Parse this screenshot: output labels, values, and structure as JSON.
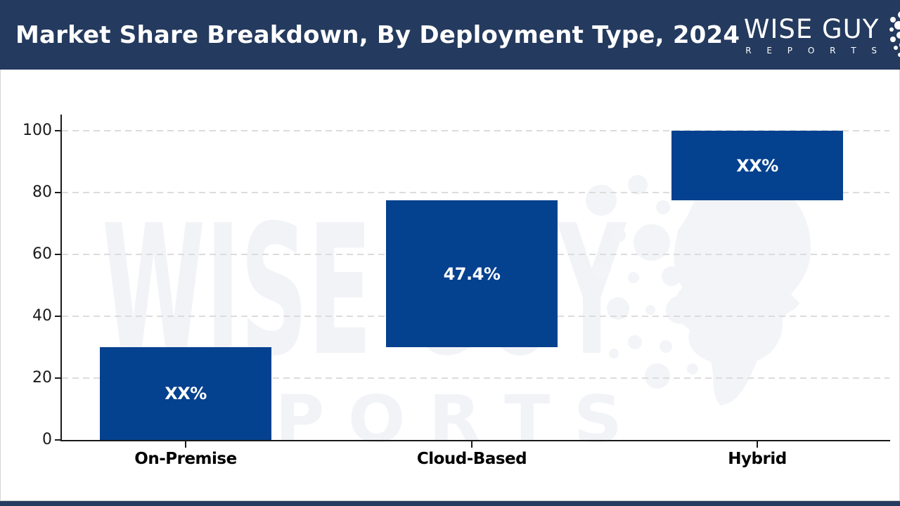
{
  "header": {
    "title": "Market Share Breakdown, By Deployment Type, 2024",
    "brand": {
      "name": "WISE GUY",
      "sub": "R E P O R T S"
    }
  },
  "watermark": {
    "line1": "WISE GUY",
    "line2": "R E P O R T S"
  },
  "colors": {
    "header_bg": "#243A5E",
    "footer_bg": "#243A5E",
    "bar": "#04418F",
    "grid": "#DCDCDC",
    "axis": "#1A1A1A",
    "bar_label": "#FFFFFF",
    "watermark": "#F1F3F7"
  },
  "chart_data": {
    "type": "bar",
    "subtype": "floating-waterfall",
    "title": "Market Share Breakdown, By Deployment Type, 2024",
    "categories": [
      "On-Premise",
      "Cloud-Based",
      "Hybrid"
    ],
    "segments": [
      {
        "category": "On-Premise",
        "base": 0,
        "top": 30,
        "label": "XX%"
      },
      {
        "category": "Cloud-Based",
        "base": 30,
        "top": 77.4,
        "label": "47.4%"
      },
      {
        "category": "Hybrid",
        "base": 77.4,
        "top": 100,
        "label": "XX%"
      }
    ],
    "xlabel": "",
    "ylabel": "",
    "ylim": [
      0,
      100
    ],
    "yticks": [
      0,
      20,
      40,
      60,
      80,
      100
    ],
    "grid": "dashed-horizontal",
    "legend": null
  }
}
